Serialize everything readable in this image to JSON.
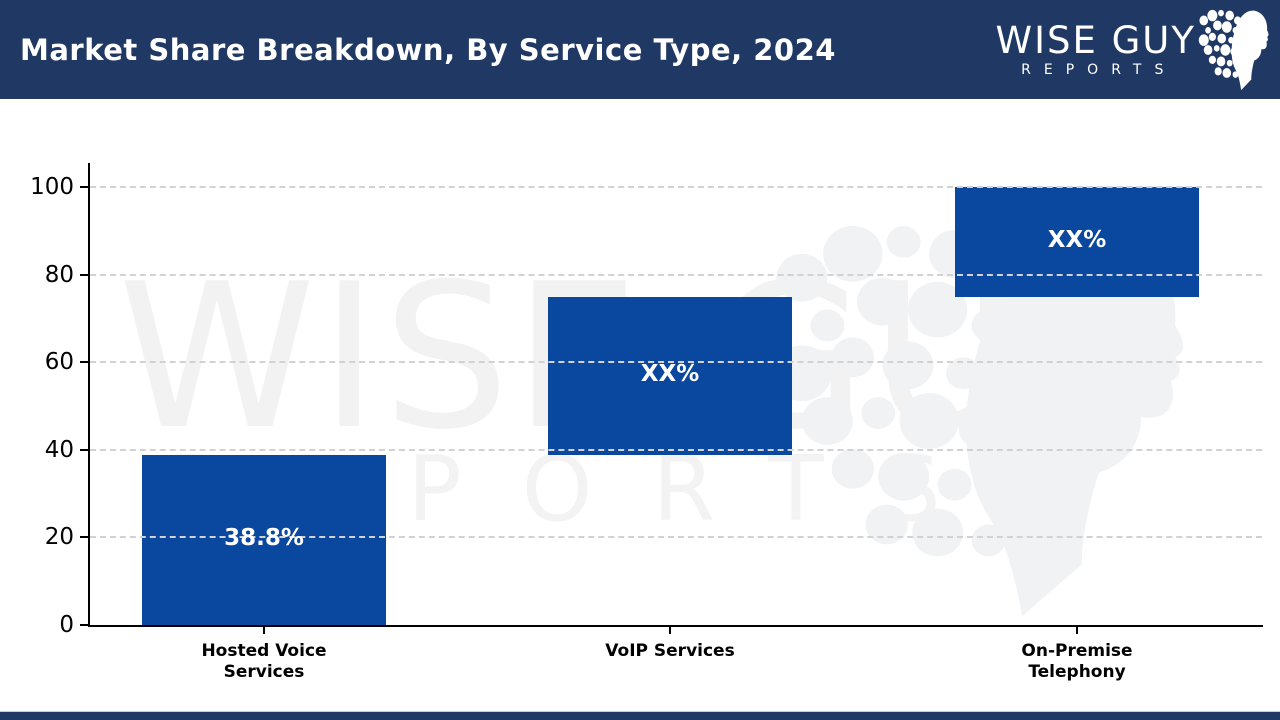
{
  "header": {
    "title": "Market Share Breakdown, By Service Type, 2024",
    "bg_color": "#1f3864",
    "logo": {
      "line1": "WISE GUY",
      "line2": "REPORTS"
    }
  },
  "watermark": {
    "line1": "WISE GUY",
    "line2": "REPORTS"
  },
  "footer": {
    "bg_color": "#1f3864"
  },
  "chart_data": {
    "type": "bar",
    "variant": "floating-segment waterfall, vertical bars",
    "title": "Market Share Breakdown, By Service Type, 2024",
    "categories": [
      {
        "name": "Hosted Voice Services",
        "lines": [
          "Hosted Voice",
          "Services"
        ]
      },
      {
        "name": "VoIP Services",
        "lines": [
          "VoIP Services"
        ]
      },
      {
        "name": "On-Premise Telephony",
        "lines": [
          "On-Premise",
          "Telephony"
        ]
      }
    ],
    "segments": [
      {
        "start": 0,
        "end": 38.8,
        "label": "38.8%"
      },
      {
        "start": 39,
        "end": 75,
        "label": "XX%"
      },
      {
        "start": 75,
        "end": 100,
        "label": "XX%"
      }
    ],
    "ylim": [
      0,
      100
    ],
    "yticks": [
      0,
      20,
      40,
      60,
      80,
      100
    ],
    "xlabel": "",
    "ylabel": "",
    "grid": {
      "axis": "y",
      "style": "dashed"
    },
    "legend": "none",
    "bar_color": "#0a48a0",
    "bar_label_color": "#ffffff",
    "axis_color": "#000000"
  }
}
